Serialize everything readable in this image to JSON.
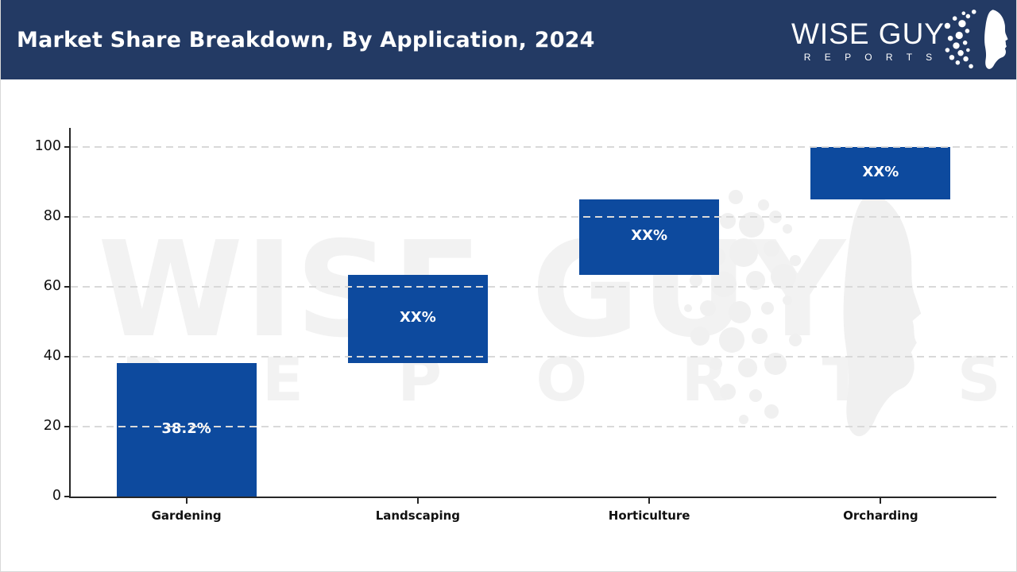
{
  "header": {
    "title": "Market Share Breakdown, By Application, 2024",
    "logo": {
      "line1": "WISE GUY",
      "line2": "REPORTS"
    }
  },
  "watermark": {
    "line1": "WISE GUY",
    "line2": "R E P O R T S"
  },
  "colors": {
    "header_bg": "#233a64",
    "bar": "#0d4a9e",
    "bar_label": "#ffffff",
    "axis": "#262626",
    "grid": "#d9d9d9",
    "watermark": "#f2f2f2",
    "tick_label": "#111111"
  },
  "chart_data": {
    "type": "bar",
    "subtype": "waterfall",
    "title": "Market Share Breakdown, By Application, 2024",
    "categories": [
      "Gardening",
      "Landscaping",
      "Horticulture",
      "Orcharding"
    ],
    "segments": [
      {
        "category": "Gardening",
        "start": 0,
        "end": 38.2,
        "label": "38.2%"
      },
      {
        "category": "Landscaping",
        "start": 38.2,
        "end": 63.5,
        "label": "XX%"
      },
      {
        "category": "Horticulture",
        "start": 63.5,
        "end": 85,
        "label": "XX%"
      },
      {
        "category": "Orcharding",
        "start": 85,
        "end": 100,
        "label": "XX%"
      }
    ],
    "xlabel": "",
    "ylabel": "",
    "ylim": [
      0,
      100
    ],
    "yticks": [
      0,
      20,
      40,
      60,
      80,
      100
    ],
    "grid": "horizontal-dashed",
    "legend": "none",
    "bar_color": "#0d4a9e",
    "bar_label_color": "#ffffff"
  }
}
